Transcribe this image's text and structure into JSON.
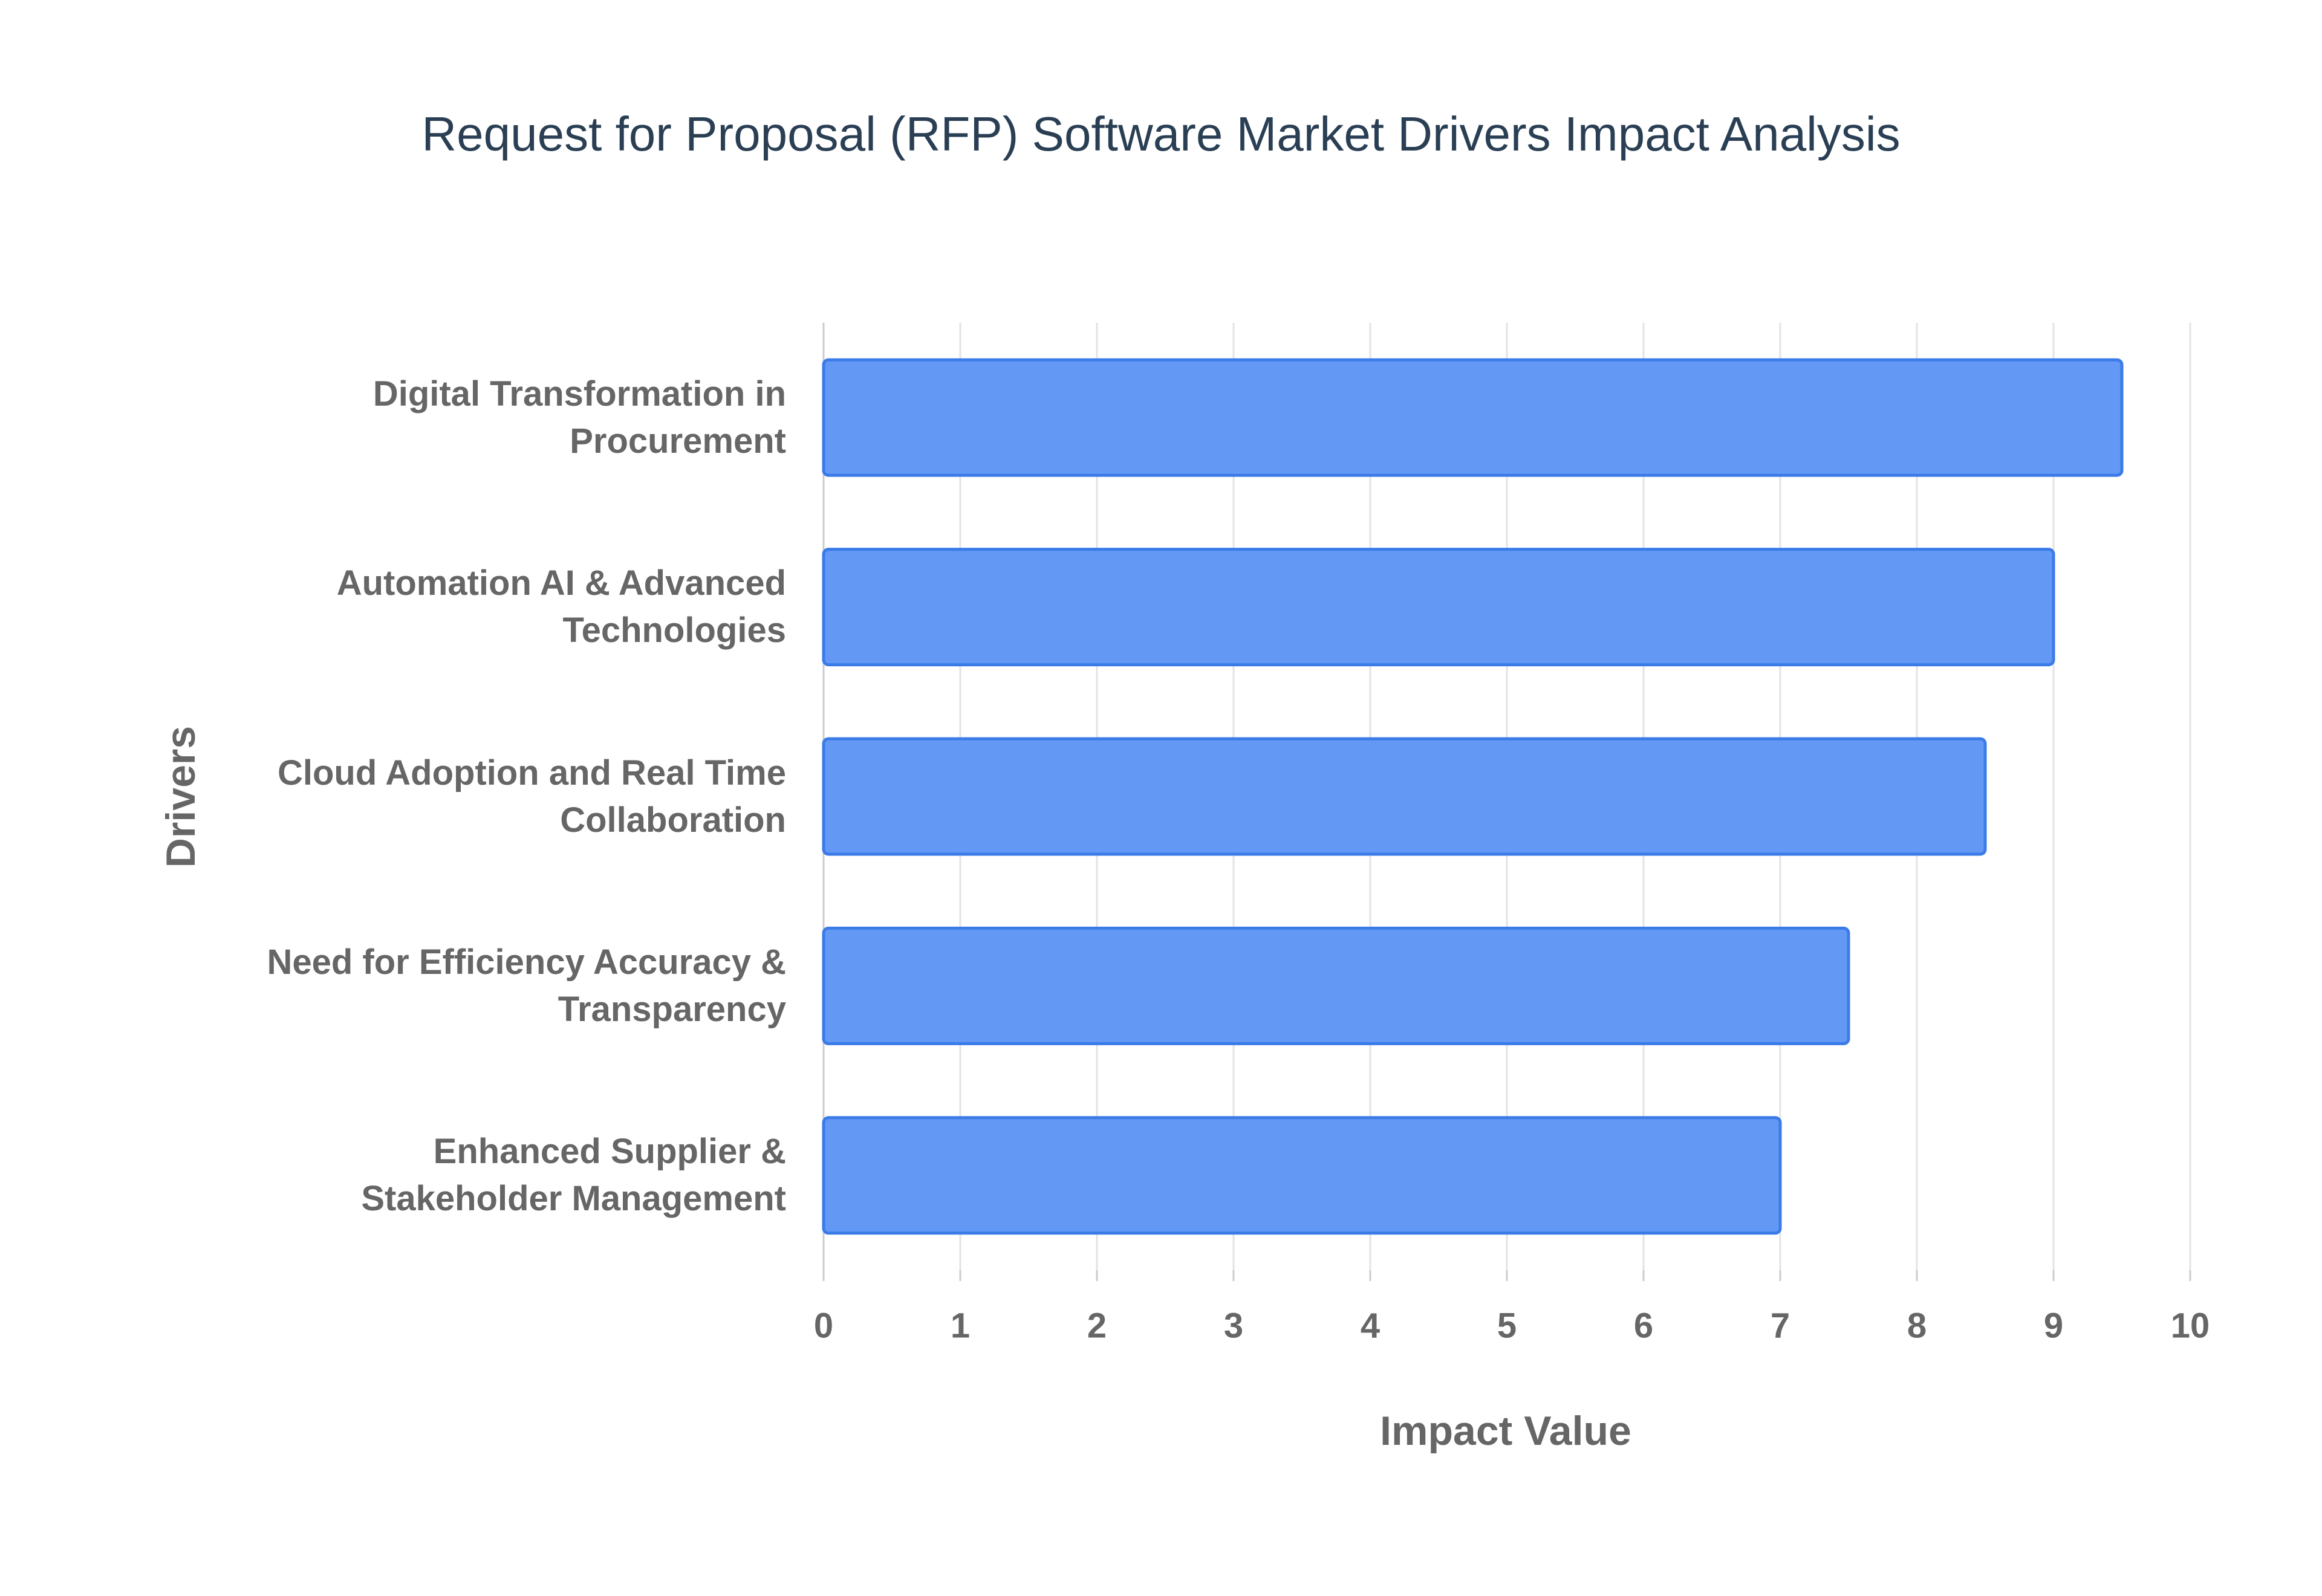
{
  "chart_data": {
    "type": "bar",
    "orientation": "horizontal",
    "title": "Request for Proposal (RFP) Software Market Drivers Impact Analysis",
    "x_label": "Impact Value",
    "y_label": "Drivers",
    "categories": [
      "Digital Transformation in Procurement",
      "Automation AI & Advanced Technologies",
      "Cloud Adoption and Real Time Collaboration",
      "Need for Efficiency Accuracy & Transparency",
      "Enhanced Supplier & Stakeholder Management"
    ],
    "values": [
      9.5,
      9,
      8.5,
      7.5,
      7
    ],
    "color": "#6399f5",
    "edge_color": "#3b7be8",
    "xlim": [
      0,
      10
    ],
    "xticks": [
      0,
      1,
      2,
      3,
      4,
      5,
      6,
      7,
      8,
      9,
      10
    ],
    "grid": true
  }
}
